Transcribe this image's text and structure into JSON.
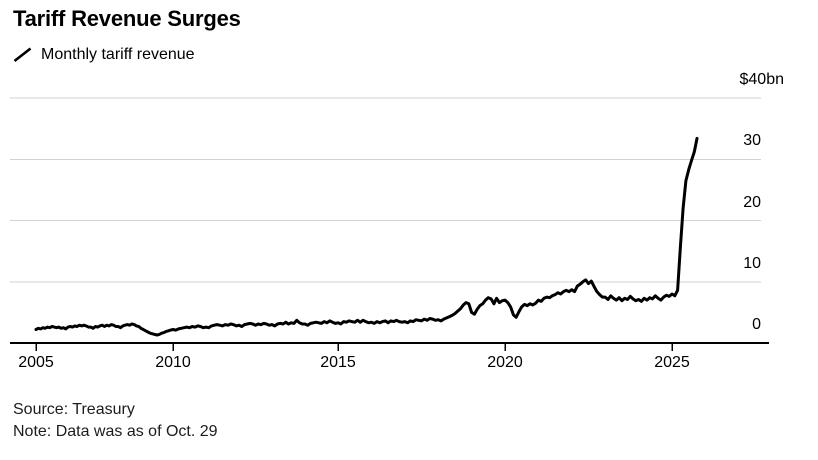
{
  "header": {
    "title": "Tariff Revenue Surges"
  },
  "legend": {
    "series_label": "Monthly tariff revenue",
    "marker": "line-slash"
  },
  "footer": {
    "source": "Source: Treasury",
    "note": "Note: Data was as of Oct. 29"
  },
  "chart_data": {
    "type": "line",
    "title": "Tariff Revenue Surges",
    "series_name": "Monthly tariff revenue",
    "unit": "$bn",
    "x_ticks": [
      2005,
      2010,
      2015,
      2020,
      2025
    ],
    "x_tick_labels": [
      "2005",
      "2010",
      "2015",
      "2020",
      "2025"
    ],
    "y_ticks": [
      0,
      10,
      20,
      30
    ],
    "y_tick_labels": [
      "0",
      "10",
      "20",
      "30"
    ],
    "y_top_value": 40,
    "y_top_label": "$40bn",
    "ylim": [
      0,
      40
    ],
    "grid": "horizontal",
    "legend_position": "top-left",
    "line_color": "#000000",
    "grid_color": "#d2d2d2",
    "axis_color": "#000000",
    "start": "2005-01",
    "end": "2025-10",
    "frequency": "monthly",
    "values": [
      2.2,
      2.4,
      2.3,
      2.5,
      2.4,
      2.6,
      2.5,
      2.7,
      2.6,
      2.5,
      2.6,
      2.4,
      2.5,
      2.3,
      2.6,
      2.7,
      2.6,
      2.8,
      2.7,
      2.9,
      2.8,
      2.9,
      2.8,
      2.6,
      2.6,
      2.4,
      2.7,
      2.6,
      2.8,
      2.9,
      2.7,
      2.9,
      2.8,
      3.0,
      2.9,
      2.7,
      2.7,
      2.5,
      2.8,
      2.9,
      3.0,
      2.9,
      3.1,
      3.0,
      2.8,
      2.7,
      2.4,
      2.2,
      2.0,
      1.8,
      1.6,
      1.5,
      1.4,
      1.3,
      1.4,
      1.6,
      1.7,
      1.9,
      2.0,
      2.1,
      2.2,
      2.1,
      2.3,
      2.4,
      2.5,
      2.6,
      2.5,
      2.7,
      2.6,
      2.8,
      2.7,
      2.5,
      2.6,
      2.5,
      2.8,
      2.9,
      3.0,
      2.9,
      2.8,
      3.0,
      2.9,
      3.1,
      3.0,
      2.8,
      2.9,
      2.7,
      3.0,
      3.1,
      3.2,
      3.1,
      2.9,
      3.1,
      3.0,
      3.2,
      3.1,
      2.9,
      3.0,
      2.8,
      3.1,
      3.2,
      3.1,
      3.4,
      3.1,
      3.3,
      3.2,
      3.7,
      3.3,
      3.1,
      3.1,
      2.9,
      3.2,
      3.3,
      3.4,
      3.3,
      3.2,
      3.5,
      3.3,
      3.6,
      3.4,
      3.2,
      3.3,
      3.1,
      3.5,
      3.4,
      3.6,
      3.5,
      3.4,
      3.7,
      3.4,
      3.7,
      3.5,
      3.3,
      3.4,
      3.2,
      3.5,
      3.3,
      3.5,
      3.6,
      3.3,
      3.6,
      3.5,
      3.7,
      3.5,
      3.4,
      3.5,
      3.3,
      3.6,
      3.5,
      3.8,
      3.7,
      3.6,
      3.9,
      3.7,
      4.0,
      3.9,
      3.7,
      3.8,
      3.6,
      3.9,
      4.1,
      4.3,
      4.5,
      4.8,
      5.2,
      5.6,
      6.2,
      6.6,
      6.4,
      5.0,
      4.7,
      5.5,
      6.1,
      6.4,
      7.0,
      7.4,
      7.2,
      6.4,
      7.3,
      6.6,
      6.9,
      7.0,
      6.6,
      5.9,
      4.6,
      4.2,
      5.1,
      5.9,
      6.3,
      6.1,
      6.4,
      6.2,
      6.5,
      7.0,
      6.8,
      7.3,
      7.5,
      7.4,
      7.7,
      7.9,
      8.2,
      8.0,
      8.4,
      8.6,
      8.4,
      8.7,
      8.4,
      9.3,
      9.6,
      10.0,
      10.3,
      9.7,
      10.1,
      9.2,
      8.4,
      7.9,
      7.5,
      7.5,
      7.1,
      7.7,
      7.3,
      7.0,
      7.4,
      6.9,
      7.3,
      7.1,
      7.6,
      7.2,
      6.9,
      7.1,
      6.8,
      7.3,
      7.0,
      7.4,
      7.2,
      7.7,
      7.3,
      7.0,
      7.5,
      7.8,
      7.6,
      8.0,
      7.7,
      8.6,
      15.7,
      22.0,
      26.5,
      28.3,
      29.8,
      31.2,
      33.4
    ]
  }
}
